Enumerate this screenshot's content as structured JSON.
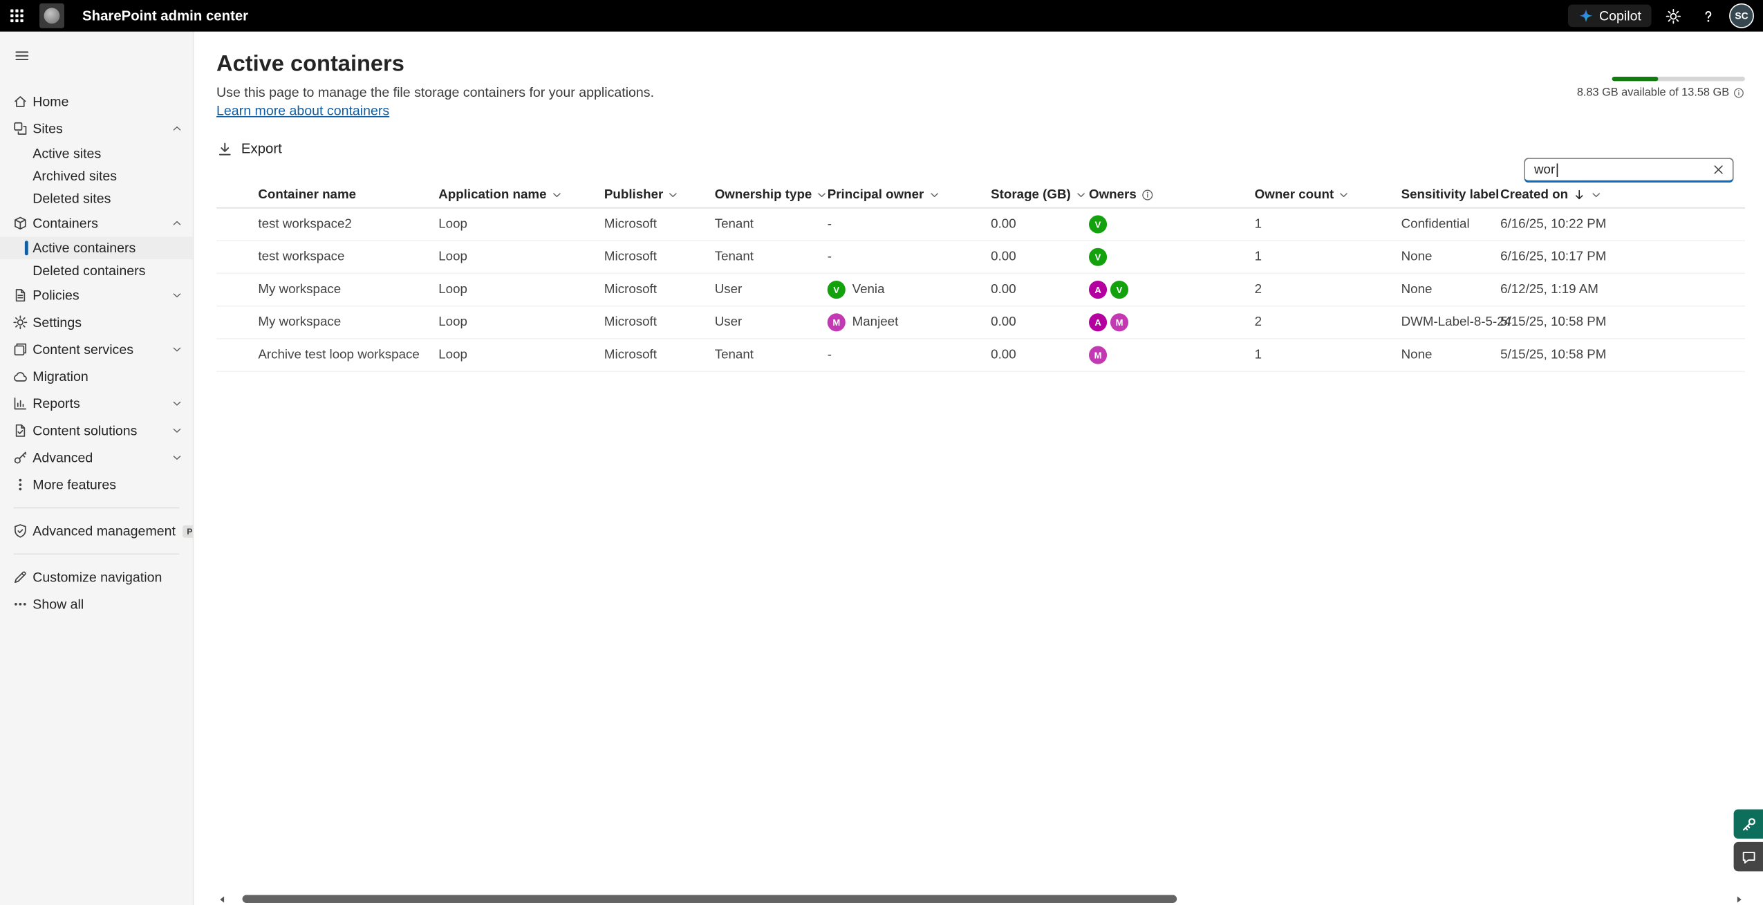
{
  "accent": {
    "brand": "#115ea3",
    "progress_green": "#107c10"
  },
  "topbar": {
    "app_title": "SharePoint admin center",
    "copilot_label": "Copilot",
    "avatar_initials": "SC"
  },
  "sidebar": {
    "items": [
      {
        "label": "Home",
        "icon": "home"
      },
      {
        "label": "Sites",
        "icon": "sites",
        "chevron": "up"
      },
      {
        "label": "Active sites",
        "indent": true
      },
      {
        "label": "Archived sites",
        "indent": true
      },
      {
        "label": "Deleted sites",
        "indent": true
      },
      {
        "label": "Containers",
        "icon": "containers",
        "chevron": "up"
      },
      {
        "label": "Active containers",
        "indent": true,
        "selected": true
      },
      {
        "label": "Deleted containers",
        "indent": true
      },
      {
        "label": "Policies",
        "icon": "policies",
        "chevron": "down"
      },
      {
        "label": "Settings",
        "icon": "settings"
      },
      {
        "label": "Content services",
        "icon": "content-services",
        "chevron": "down"
      },
      {
        "label": "Migration",
        "icon": "migration"
      },
      {
        "label": "Reports",
        "icon": "reports",
        "chevron": "down"
      },
      {
        "label": "Content solutions",
        "icon": "content-solutions",
        "chevron": "down"
      },
      {
        "label": "Advanced",
        "icon": "advanced",
        "chevron": "down"
      },
      {
        "label": "More features",
        "icon": "more-features"
      },
      {
        "divider": true
      },
      {
        "label": "Advanced management",
        "icon": "advanced-management",
        "badge": "PRO"
      },
      {
        "divider": true
      },
      {
        "label": "Customize navigation",
        "icon": "customize-navigation"
      },
      {
        "label": "Show all",
        "icon": "show-all"
      }
    ]
  },
  "page": {
    "title": "Active containers",
    "description": "Use this page to manage the file storage containers for your applications.",
    "learn_more": "Learn more about containers"
  },
  "storage": {
    "text": "8.83 GB available of 13.58 GB",
    "percent_used": 35
  },
  "toolbar": {
    "export_label": "Export"
  },
  "search": {
    "value": "wor"
  },
  "table": {
    "columns": [
      {
        "label": "Container name"
      },
      {
        "label": "Application name",
        "chevron": true
      },
      {
        "label": "Publisher",
        "chevron": true
      },
      {
        "label": "Ownership type",
        "chevron": true
      },
      {
        "label": "Principal owner",
        "chevron": true
      },
      {
        "label": "Storage (GB)",
        "chevron": true
      },
      {
        "label": "Owners",
        "info": true
      },
      {
        "label": "Owner count",
        "chevron": true
      },
      {
        "label": "Sensitivity label"
      },
      {
        "label": "Created on",
        "sort": "desc",
        "chevron": true
      }
    ],
    "rows": [
      {
        "container_name": "test workspace2",
        "application_name": "Loop",
        "publisher": "Microsoft",
        "ownership_type": "Tenant",
        "principal_owner": null,
        "storage_gb": "0.00",
        "owners": [
          {
            "initial": "V",
            "color": "#13a10e"
          }
        ],
        "owner_count": "1",
        "sensitivity_label": "Confidential",
        "created_on": "6/16/25, 10:22 PM"
      },
      {
        "container_name": "test workspace",
        "application_name": "Loop",
        "publisher": "Microsoft",
        "ownership_type": "Tenant",
        "principal_owner": null,
        "storage_gb": "0.00",
        "owners": [
          {
            "initial": "V",
            "color": "#13a10e"
          }
        ],
        "owner_count": "1",
        "sensitivity_label": "None",
        "created_on": "6/16/25, 10:17 PM"
      },
      {
        "container_name": "My workspace",
        "application_name": "Loop",
        "publisher": "Microsoft",
        "ownership_type": "User",
        "principal_owner": {
          "initial": "V",
          "color": "#13a10e",
          "name": "Venia"
        },
        "storage_gb": "0.00",
        "owners": [
          {
            "initial": "A",
            "color": "#b4009e"
          },
          {
            "initial": "V",
            "color": "#13a10e"
          }
        ],
        "owner_count": "2",
        "sensitivity_label": "None",
        "created_on": "6/12/25, 1:19 AM"
      },
      {
        "container_name": "My workspace",
        "application_name": "Loop",
        "publisher": "Microsoft",
        "ownership_type": "User",
        "principal_owner": {
          "initial": "M",
          "color": "#c239b3",
          "name": "Manjeet"
        },
        "storage_gb": "0.00",
        "owners": [
          {
            "initial": "A",
            "color": "#b4009e"
          },
          {
            "initial": "M",
            "color": "#c239b3"
          }
        ],
        "owner_count": "2",
        "sensitivity_label": "DWM-Label-8-5-24",
        "created_on": "5/15/25, 10:58 PM"
      },
      {
        "container_name": "Archive test loop workspace",
        "application_name": "Loop",
        "publisher": "Microsoft",
        "ownership_type": "Tenant",
        "principal_owner": null,
        "storage_gb": "0.00",
        "owners": [
          {
            "initial": "M",
            "color": "#c239b3"
          }
        ],
        "owner_count": "1",
        "sensitivity_label": "None",
        "created_on": "5/15/25, 10:58 PM"
      }
    ]
  },
  "floating": {
    "buttons": [
      {
        "name": "password-manager",
        "icon": "key",
        "color": "#0e6e5c"
      },
      {
        "name": "chat",
        "icon": "chat",
        "color": "#454545"
      }
    ]
  }
}
